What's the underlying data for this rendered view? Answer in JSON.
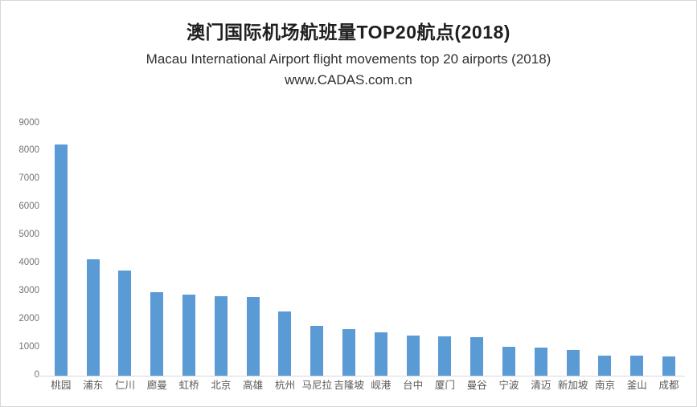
{
  "header": {
    "title": "澳门国际机场航班量TOP20航点(2018)",
    "subtitle": "Macau International Airport  flight movements top 20 airports (2018)",
    "watermark": "www.CADAS.com.cn"
  },
  "colors": {
    "bar": "#5B9BD5",
    "axis_line": "#D9D9D9",
    "y_tick_text": "#737373",
    "x_tick_text": "#595959",
    "title_text": "#1F1F1F"
  },
  "chart_data": {
    "type": "bar",
    "title": "澳门国际机场航班量TOP20航点(2018)",
    "subtitle": "Macau International Airport  flight movements top 20 airports (2018)",
    "watermark": "www.CADAS.com.cn",
    "categories": [
      "桃园",
      "浦东",
      "仁川",
      "廊曼",
      "虹桥",
      "北京",
      "高雄",
      "杭州",
      "马尼拉",
      "吉隆坡",
      "岘港",
      "台中",
      "厦门",
      "曼谷",
      "宁波",
      "清迈",
      "新加坡",
      "南京",
      "釜山",
      "成都"
    ],
    "values": [
      8250,
      4150,
      3750,
      2970,
      2890,
      2840,
      2800,
      2280,
      1780,
      1670,
      1560,
      1420,
      1400,
      1390,
      1030,
      1000,
      920,
      730,
      710,
      690
    ],
    "xlabel": "",
    "ylabel": "",
    "ylim": [
      0,
      9000
    ],
    "yticks": [
      0,
      1000,
      2000,
      3000,
      4000,
      5000,
      6000,
      7000,
      8000,
      9000
    ],
    "grid": false,
    "legend": false,
    "bar_color": "#5B9BD5"
  }
}
